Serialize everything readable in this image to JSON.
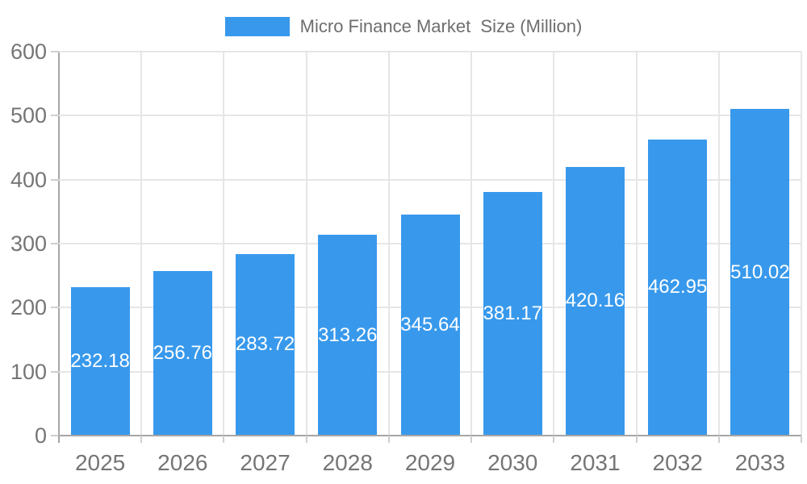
{
  "chart_data": {
    "type": "bar",
    "title": "Micro Finance Market  Size (Million)",
    "categories": [
      "2025",
      "2026",
      "2027",
      "2028",
      "2029",
      "2030",
      "2031",
      "2032",
      "2033"
    ],
    "values": [
      232.18,
      256.76,
      283.72,
      313.26,
      345.64,
      381.17,
      420.16,
      462.95,
      510.02
    ],
    "value_labels": [
      "232.18",
      "256.76",
      "283.72",
      "313.26",
      "345.64",
      "381.17",
      "420.16",
      "462.95",
      "510.02"
    ],
    "series_name": "Micro Finance Market  Size (Million)",
    "xlabel": "",
    "ylabel": "",
    "ylim": [
      0,
      600
    ],
    "yticks": [
      0,
      100,
      200,
      300,
      400,
      500,
      600
    ],
    "ytick_labels": [
      "0",
      "100",
      "200",
      "300",
      "400",
      "500",
      "600"
    ],
    "grid": true,
    "legend_position": "top",
    "value_label_position": "center-inside",
    "colors": {
      "bar": "#3899EC",
      "gridline": "#e6e6e6",
      "axis_line": "#a6a6a6",
      "tick_mark": "#cfcfcf",
      "axis_label": "#757575",
      "title_text": "#6e6e6e",
      "value_label": "#ffffff",
      "background": "#ffffff"
    }
  }
}
